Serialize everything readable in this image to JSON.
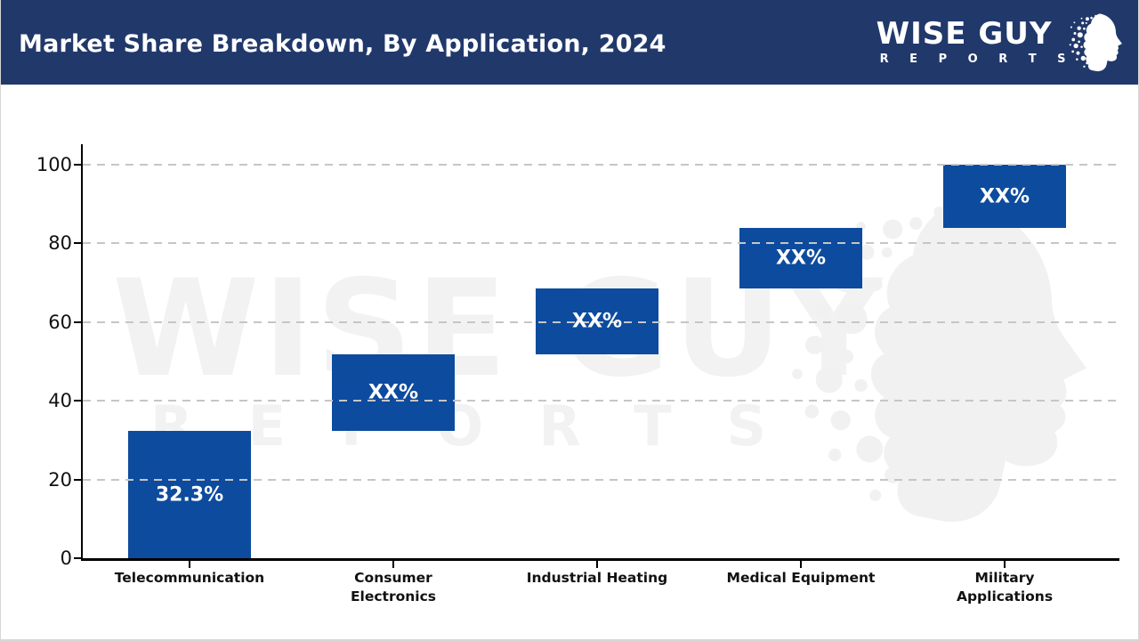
{
  "header": {
    "title": "Market Share Breakdown, By Application, 2024",
    "logo": {
      "wordmark": "WISE GUY",
      "sub": "R E P O R T S"
    }
  },
  "watermark": {
    "wordmark": "WISE GUY",
    "sub": "REPORTS"
  },
  "chart_data": {
    "type": "bar",
    "subtype": "waterfall-stacked-progression",
    "title": "Market Share Breakdown, By Application, 2024",
    "categories": [
      "Telecommunication",
      "Consumer Electronics",
      "Industrial Heating",
      "Medical Equipment",
      "Military Applications"
    ],
    "category_lines": [
      [
        "Telecommunication"
      ],
      [
        "Consumer",
        "Electronics"
      ],
      [
        "Industrial Heating"
      ],
      [
        "Medical Equipment"
      ],
      [
        "Military",
        "Applications"
      ]
    ],
    "values": [
      32.3,
      19.4,
      16.9,
      15.3,
      16.1
    ],
    "segments": [
      {
        "category": "Telecommunication",
        "start": 0,
        "end": 32.3,
        "label": "32.3%"
      },
      {
        "category": "Consumer Electronics",
        "start": 32.3,
        "end": 51.7,
        "label": "XX%"
      },
      {
        "category": "Industrial Heating",
        "start": 51.7,
        "end": 68.6,
        "label": "XX%"
      },
      {
        "category": "Medical Equipment",
        "start": 68.6,
        "end": 83.9,
        "label": "XX%"
      },
      {
        "category": "Military Applications",
        "start": 83.9,
        "end": 100,
        "label": "XX%"
      }
    ],
    "yticks": [
      0,
      20,
      40,
      60,
      80,
      100
    ],
    "ylim": [
      0,
      105
    ],
    "xlabel": "",
    "ylabel": "",
    "grid": {
      "axis": "y",
      "style": "dashed",
      "drawn_over_bars": true
    },
    "legend": null,
    "colors": {
      "bar": "#0d4b9e",
      "bar_label": "#ffffff",
      "header_bg": "#21386b",
      "header_text": "#ffffff",
      "gridline": "#c6c6c6",
      "axis": "#000000",
      "tick_text": "#111111",
      "watermark": "#f2f2f2"
    }
  }
}
